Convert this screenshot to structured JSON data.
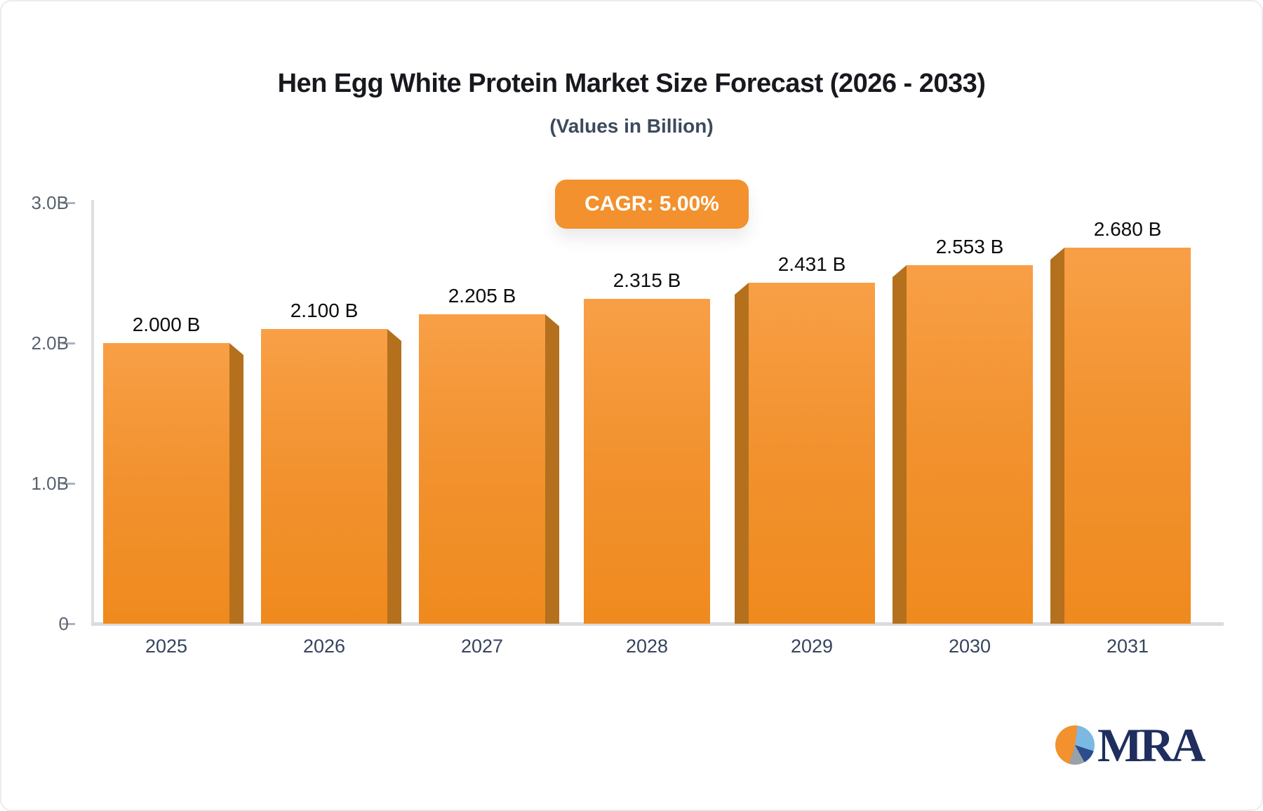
{
  "header": {
    "title": "Hen Egg White Protein Market Size Forecast (2026 - 2033)",
    "subtitle": "(Values in Billion)",
    "cagr_badge": "CAGR: 5.00%"
  },
  "chart_data": {
    "type": "bar",
    "title": "Hen Egg White Protein Market Size Forecast (2026 - 2033)",
    "subtitle": "(Values in Billion)",
    "unit": "Billion",
    "cagr": "5.00%",
    "categories": [
      "2025",
      "2026",
      "2027",
      "2028",
      "2029",
      "2030",
      "2031"
    ],
    "values": [
      2.0,
      2.1,
      2.205,
      2.315,
      2.431,
      2.553,
      2.68
    ],
    "data_labels": [
      "2.000 B",
      "2.100 B",
      "2.205 B",
      "2.315 B",
      "2.431 B",
      "2.553 B",
      "2.680 B"
    ],
    "ylim": [
      0,
      3.0
    ],
    "yticks": [
      {
        "label": "3.0B",
        "value": 3.0
      },
      {
        "label": "2.0B",
        "value": 2.0
      },
      {
        "label": "1.0B",
        "value": 1.0
      },
      {
        "label": "0",
        "value": 0.0
      }
    ],
    "grid": false,
    "legend": false,
    "colors": {
      "bar_face_top": "#f89f46",
      "bar_face_bottom": "#ef8a1e",
      "bar_side": "#b4701d",
      "badge": "#f2912d",
      "axis_line": "#d9dbde",
      "value_label": "#0d0d0d",
      "category_label": "#36445c",
      "ytick_label": "#58636f"
    }
  },
  "logo": {
    "text": "MRA",
    "icon": "pie-chart-icon",
    "pie_colors": [
      "#f2912d",
      "#7cb9e2",
      "#2c4c8c",
      "#99a1a9"
    ],
    "text_color": "#1f2e5e"
  }
}
